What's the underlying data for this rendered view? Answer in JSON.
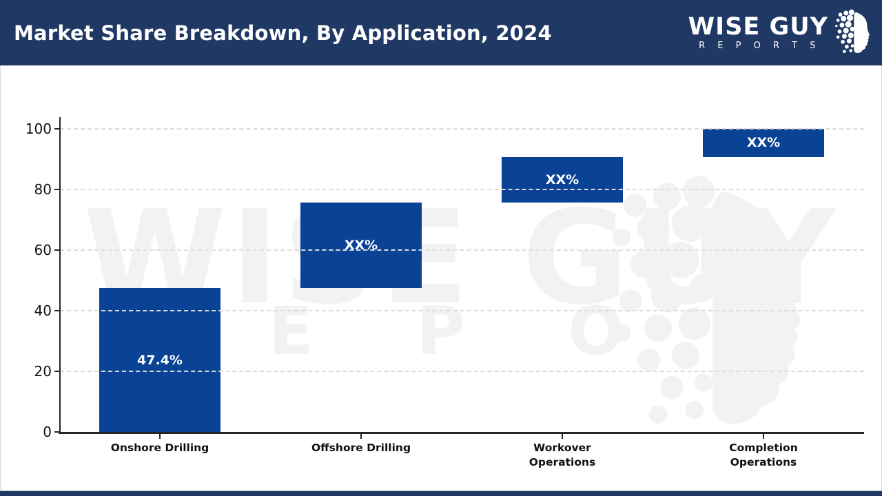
{
  "header": {
    "title": "Market Share Breakdown, By Application, 2024",
    "logo": {
      "line1": "WISE GUY",
      "line2": "R E P O R T S"
    }
  },
  "watermark": {
    "line1": "WISE GUY",
    "line2": "R E P O R T S"
  },
  "colors": {
    "header_bg": "#203864",
    "footer_bg": "#203864",
    "bar": "#0a4296",
    "bar_label": "#ffffff",
    "axis": "#262626",
    "grid": "#dcdcdc",
    "watermark": "#f2f2f2"
  },
  "chart_data": {
    "type": "bar",
    "subtype": "waterfall",
    "title": "Market Share Breakdown, By Application, 2024",
    "xlabel": "",
    "ylabel": "",
    "categories": [
      "Onshore Drilling",
      "Offshore Drilling",
      "Workover Operations",
      "Completion Operations"
    ],
    "category_label_lines": [
      [
        "Onshore Drilling"
      ],
      [
        "Offshore Drilling"
      ],
      [
        "Workover",
        "Operations"
      ],
      [
        "Completion",
        "Operations"
      ]
    ],
    "segments": [
      {
        "category": "Onshore Drilling",
        "start": 0,
        "end": 47.4,
        "value": 47.4,
        "label": "47.4%"
      },
      {
        "category": "Offshore Drilling",
        "start": 47.4,
        "end": 75.7,
        "value": 28.3,
        "label": "XX%"
      },
      {
        "category": "Workover Operations",
        "start": 75.7,
        "end": 90.7,
        "value": 15.0,
        "label": "XX%"
      },
      {
        "category": "Completion Operations",
        "start": 90.7,
        "end": 100.0,
        "value": 9.3,
        "label": "XX%"
      }
    ],
    "yticks": [
      0,
      20,
      40,
      60,
      80,
      100
    ],
    "ylim": [
      0,
      104
    ],
    "grid": "horizontal-dashed",
    "legend": "none"
  }
}
